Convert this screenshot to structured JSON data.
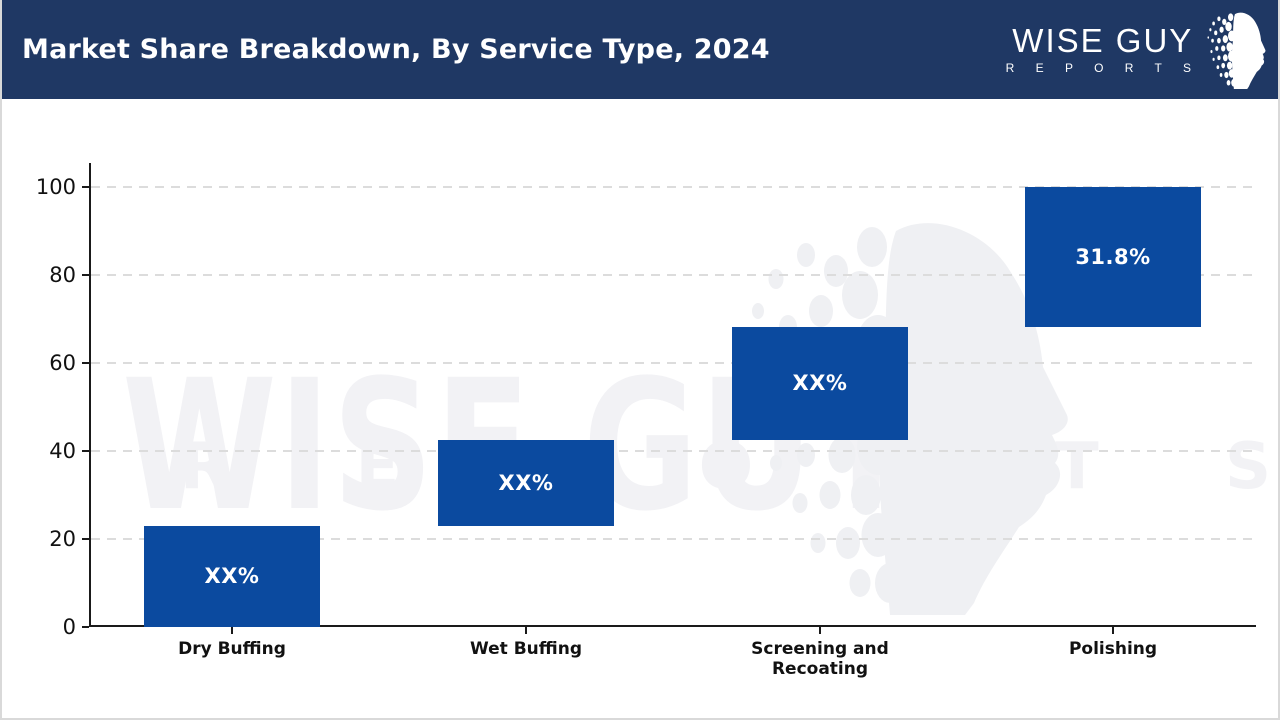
{
  "header": {
    "title": "Market Share Breakdown, By Service Type, 2024",
    "logo": {
      "name": "WISE GUY",
      "tagline": "R E P O R T S"
    }
  },
  "watermark": {
    "name": "WISE GUY",
    "tagline": "R E P O R T S"
  },
  "colors": {
    "header_bg": "#1f3864",
    "bar": "#0b4a9f",
    "grid": "#dcdcdc",
    "axis": "#1a1a1a",
    "watermark": "#f0f0f3"
  },
  "chart_data": {
    "type": "bar",
    "subtype": "floating-waterfall",
    "title": "Market Share Breakdown, By Service Type, 2024",
    "categories": [
      "Dry Buffing",
      "Wet Buffing",
      "Screening and Recoating",
      "Polishing"
    ],
    "series": [
      {
        "name": "Market share (%)",
        "segments": [
          {
            "category": "Dry Buffing",
            "start": 0,
            "end": 23,
            "value_label": "XX%"
          },
          {
            "category": "Wet Buffing",
            "start": 23,
            "end": 42.5,
            "value_label": "XX%"
          },
          {
            "category": "Screening and Recoating",
            "start": 42.5,
            "end": 68.2,
            "value_label": "XX%"
          },
          {
            "category": "Polishing",
            "start": 68.2,
            "end": 100,
            "value_label": "31.8%"
          }
        ]
      }
    ],
    "yticks": [
      0,
      20,
      40,
      60,
      80,
      100
    ],
    "ylim": [
      0,
      105
    ],
    "xlabel": "",
    "ylabel": "",
    "grid": "horizontal-dashed",
    "legend": "none"
  }
}
